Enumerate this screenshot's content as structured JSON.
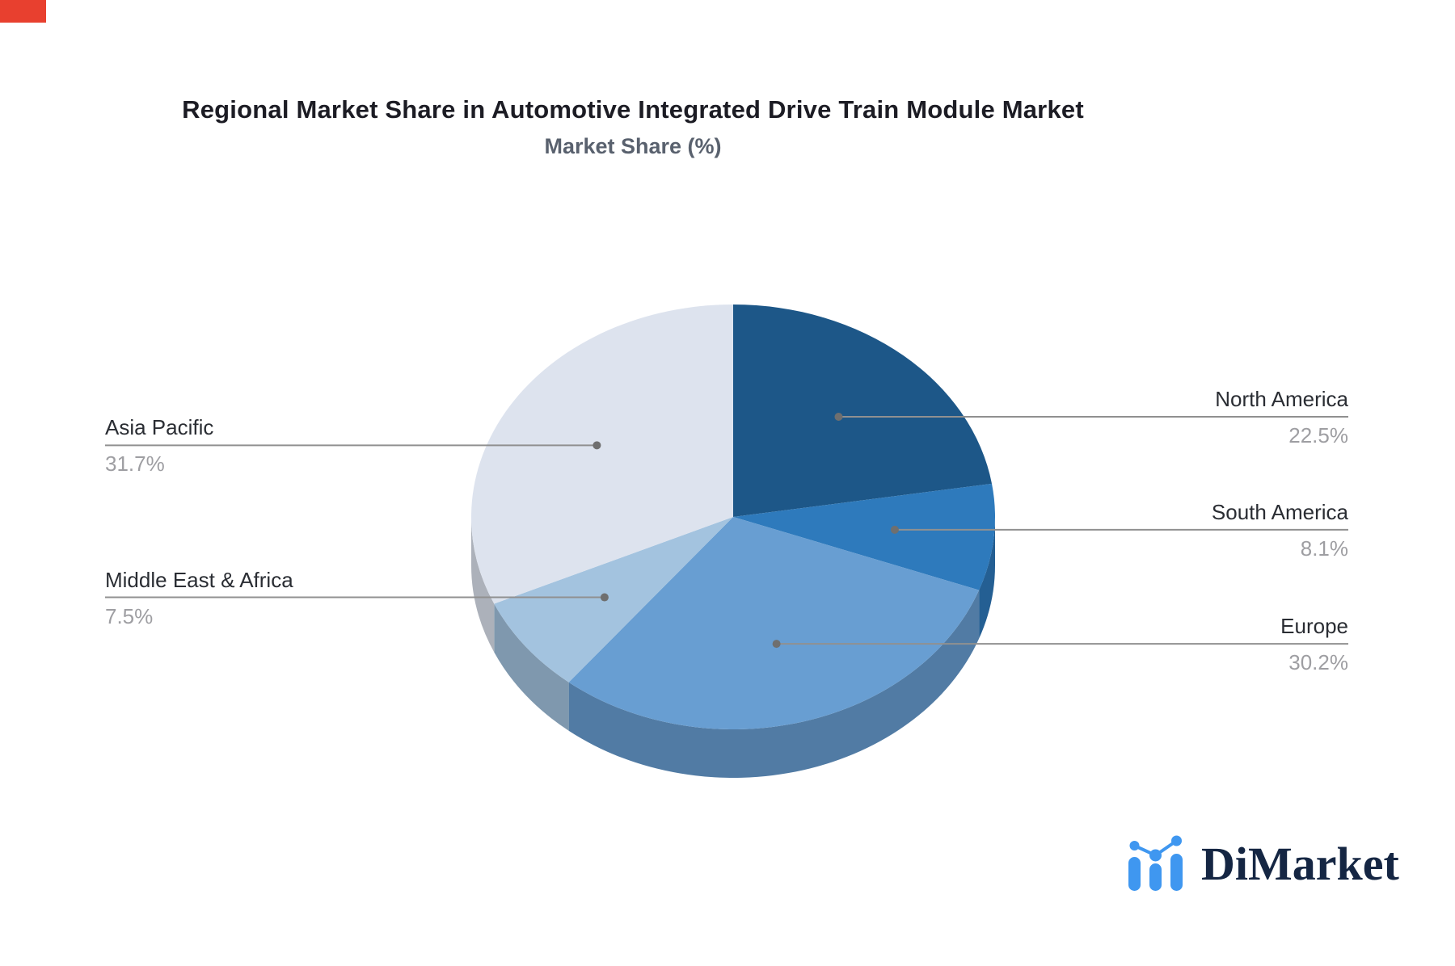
{
  "header": {
    "title": "Regional Market Share in Automotive Integrated Drive Train Module Market",
    "subtitle": "Market Share (%)"
  },
  "chart_data": {
    "type": "pie",
    "title": "Regional Market Share in Automotive Integrated Drive Train Module Market",
    "subtitle": "Market Share (%)",
    "unit": "%",
    "style": "3d",
    "start_angle_deg": 0,
    "direction": "clockwise",
    "label_style": "leader-lines",
    "slices": [
      {
        "label": "North America",
        "value": 22.5,
        "display": "22.5%",
        "color": "#1d5788"
      },
      {
        "label": "South America",
        "value": 8.1,
        "display": "8.1%",
        "color": "#2e7abc"
      },
      {
        "label": "Europe",
        "value": 30.2,
        "display": "30.2%",
        "color": "#689ed2"
      },
      {
        "label": "Middle East & Africa",
        "value": 7.5,
        "display": "7.5%",
        "color": "#a3c3df"
      },
      {
        "label": "Asia Pacific",
        "value": 31.7,
        "display": "31.7%",
        "color": "#dde3ee"
      }
    ]
  },
  "branding": {
    "logo_text": "DiMarket",
    "logo_color": "#152643",
    "logo_accent": "#3f97f0"
  },
  "decorations": {
    "top_left_marker_color": "#e8402f"
  }
}
